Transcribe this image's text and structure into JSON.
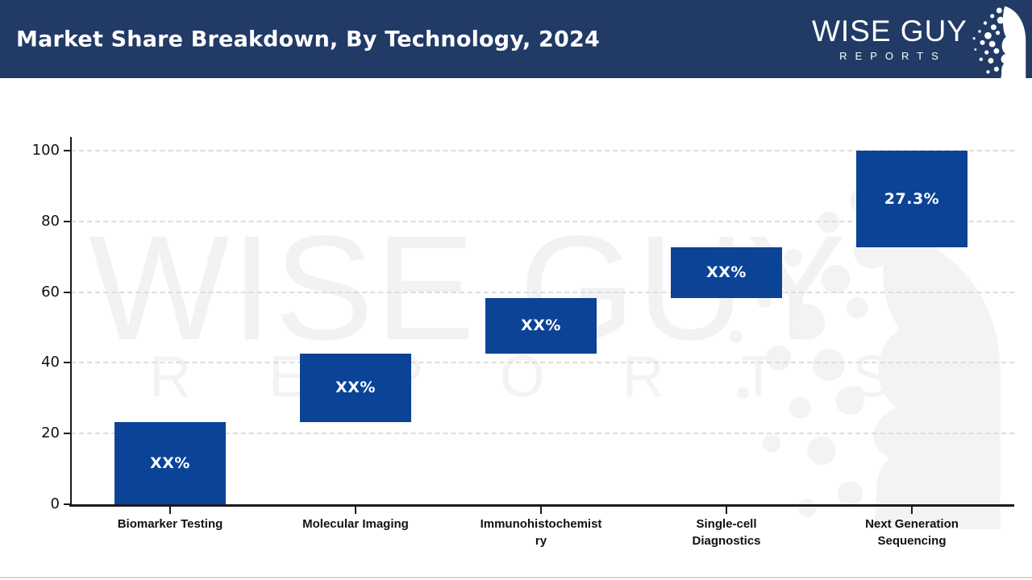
{
  "header": {
    "title": "Market Share Breakdown, By Technology, 2024",
    "bg_color": "#213a66",
    "logo": {
      "line1": "WISE GUY",
      "line2": "REPORTS"
    }
  },
  "watermark": {
    "line1": "WISE GUY",
    "line2": "R E P O R T S"
  },
  "chart_data": {
    "type": "bar",
    "subtype": "waterfall",
    "title": "Market Share Breakdown, By Technology, 2024",
    "unit": "%",
    "categories": [
      "Biomarker Testing",
      "Molecular Imaging",
      "Immunohistochemistry",
      "Single-cell Diagnostics",
      "Next Generation Sequencing"
    ],
    "category_label_lines": [
      [
        "Biomarker Testing"
      ],
      [
        "Molecular Imaging"
      ],
      [
        "Immunohistochemist",
        "ry"
      ],
      [
        "Single-cell",
        "Diagnostics"
      ],
      [
        "Next Generation",
        "Sequencing"
      ]
    ],
    "values": [
      23.2,
      19.5,
      15.7,
      14.3,
      27.3
    ],
    "segment_starts": [
      0,
      23.2,
      42.7,
      58.4,
      72.7
    ],
    "segment_ends": [
      23.2,
      42.7,
      58.4,
      72.7,
      100
    ],
    "bar_labels": [
      "XX%",
      "XX%",
      "XX%",
      "XX%",
      "27.3%"
    ],
    "yticks": [
      0,
      20,
      40,
      60,
      80,
      100
    ],
    "ylim": [
      0,
      100
    ],
    "grid": "horizontal-dashed",
    "legend": "none",
    "bar_color": "#0b4397",
    "bar_label_color": "#ffffff",
    "axis_color": "#1a1a1a"
  }
}
